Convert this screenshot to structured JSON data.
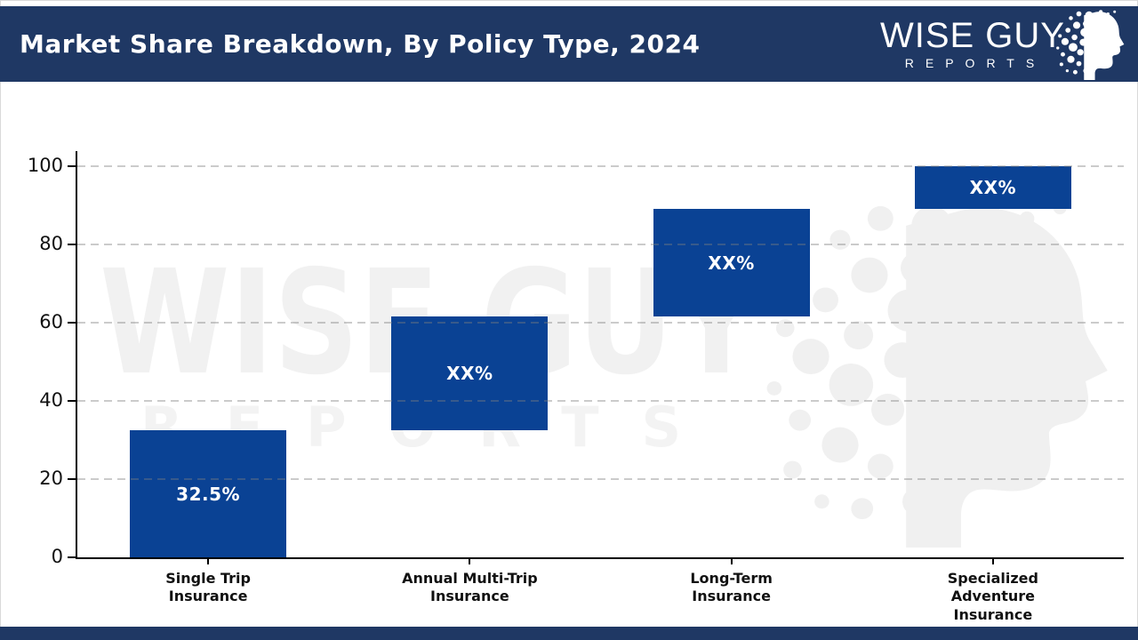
{
  "header": {
    "title": "Market Share Breakdown, By Policy Type, 2024",
    "logo": {
      "primary": "WISE GUY",
      "secondary": "REPORTS"
    }
  },
  "watermark": {
    "primary": "WISE GUY",
    "secondary": "REPORTS"
  },
  "colors": {
    "header_bg": "#1f3864",
    "footer_bg": "#1f3864",
    "bar": "#0a4294",
    "title_text": "#ffffff",
    "watermark": "#f1f1f1",
    "axis": "#000000"
  },
  "chart_data": {
    "type": "bar",
    "variant": "waterfall",
    "title": "Market Share Breakdown, By Policy Type, 2024",
    "categories": [
      [
        "Single Trip",
        "Insurance"
      ],
      [
        "Annual Multi-Trip",
        "Insurance"
      ],
      [
        "Long-Term",
        "Insurance"
      ],
      [
        "Specialized",
        "Adventure",
        "Insurance"
      ]
    ],
    "segments": [
      {
        "start": 0,
        "end": 32.5,
        "label": "32.5%"
      },
      {
        "start": 32.5,
        "end": 61.5,
        "label": "XX%"
      },
      {
        "start": 61.5,
        "end": 89,
        "label": "XX%"
      },
      {
        "start": 89,
        "end": 100,
        "label": "XX%"
      }
    ],
    "xlabel": "",
    "ylabel": "",
    "ylim": [
      0,
      100
    ],
    "yticks": [
      0,
      20,
      40,
      60,
      80,
      100
    ],
    "grid": {
      "axis": "y",
      "style": "dashed",
      "drawn_over_bars": true
    },
    "legend": "none",
    "bar_color": "#0a4294",
    "value_label_position": "center"
  }
}
